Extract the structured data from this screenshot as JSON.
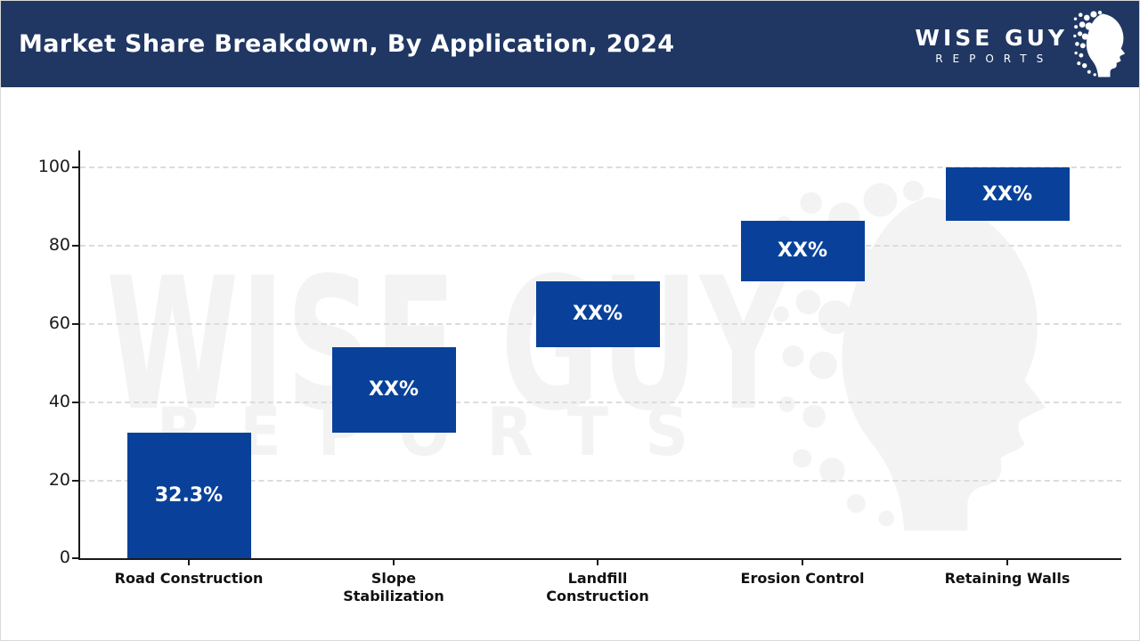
{
  "header": {
    "title": "Market Share Breakdown, By Application, 2024",
    "background_color": "#203763",
    "logo": {
      "line1": "WISE GUY",
      "line2": "REPORTS"
    }
  },
  "watermark": {
    "line1": "WISE GUY",
    "line2": "REPORTS"
  },
  "chart_data": {
    "type": "bar",
    "subtype": "waterfall",
    "title": "Market Share Breakdown, By Application, 2024",
    "categories": [
      "Road Construction",
      "Slope Stabilization",
      "Landfill Construction",
      "Erosion Control",
      "Retaining Walls"
    ],
    "category_lines": [
      [
        "Road Construction"
      ],
      [
        "Slope",
        "Stabilization"
      ],
      [
        "Landfill",
        "Construction"
      ],
      [
        "Erosion Control"
      ],
      [
        "Retaining Walls"
      ]
    ],
    "segments": [
      {
        "category": "Road Construction",
        "start": 0,
        "end": 32.3,
        "label": "32.3%"
      },
      {
        "category": "Slope Stabilization",
        "start": 32.3,
        "end": 54.0,
        "label": "XX%"
      },
      {
        "category": "Landfill Construction",
        "start": 54.0,
        "end": 71.0,
        "label": "XX%"
      },
      {
        "category": "Erosion Control",
        "start": 71.0,
        "end": 86.3,
        "label": "XX%"
      },
      {
        "category": "Retaining Walls",
        "start": 86.3,
        "end": 100.0,
        "label": "XX%"
      }
    ],
    "yticks": [
      0,
      20,
      40,
      60,
      80,
      100
    ],
    "ylim": [
      0,
      104
    ],
    "xlabel": "",
    "ylabel": "",
    "legend": "none",
    "grid": "dashed-horizontal",
    "bar_color": "#09419a",
    "bar_label_color": "#ffffff",
    "axis_color": "#1a1a1a",
    "grid_color": "#dcdcdc"
  }
}
